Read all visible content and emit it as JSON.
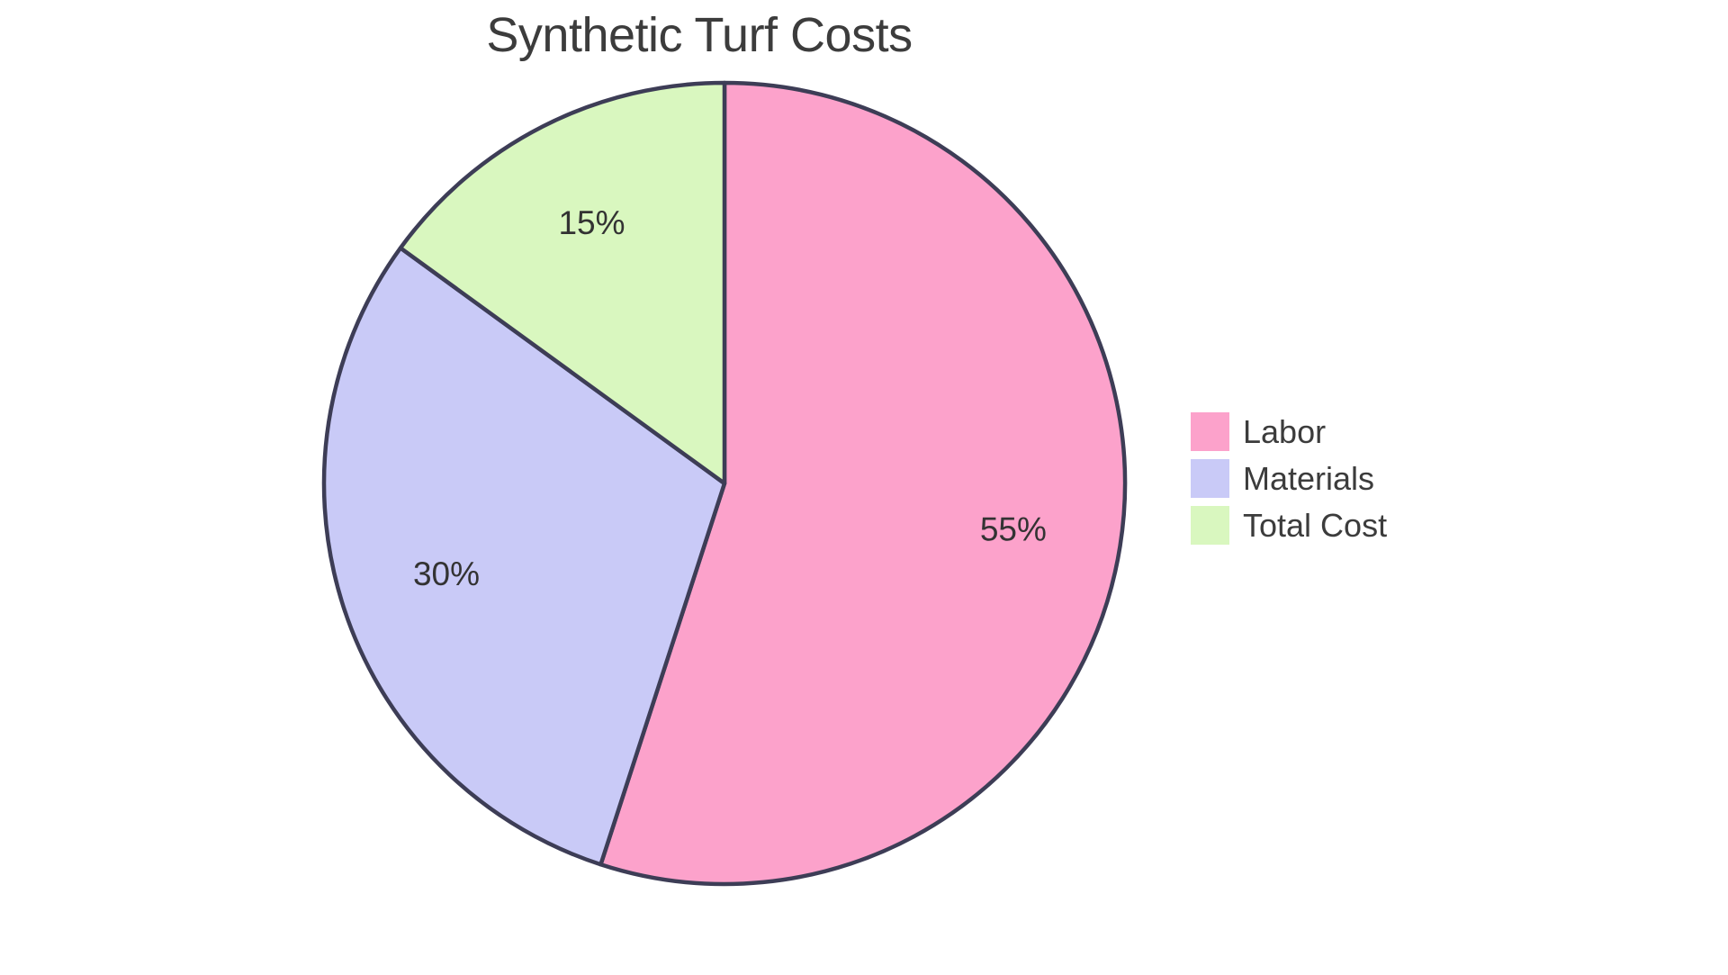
{
  "chart_data": {
    "type": "pie",
    "title": "Synthetic Turf Costs",
    "labels": [
      "Labor",
      "Materials",
      "Total Cost"
    ],
    "values": [
      55,
      30,
      15
    ],
    "slice_labels": [
      "55%",
      "30%",
      "15%"
    ],
    "colors": [
      "#FCA2CB",
      "#C9CAF7",
      "#D9F7BF"
    ],
    "slice_border_color": "#3D3D56",
    "slice_label_color": "#333333",
    "title_color": "#3C3C3C",
    "start_angle": "top",
    "direction": "clockwise",
    "legend_position": "right"
  },
  "legend": {
    "items": [
      {
        "label": "Labor",
        "color": "#FCA2CB"
      },
      {
        "label": "Materials",
        "color": "#C9CAF7"
      },
      {
        "label": "Total Cost",
        "color": "#D9F7BF"
      }
    ]
  }
}
